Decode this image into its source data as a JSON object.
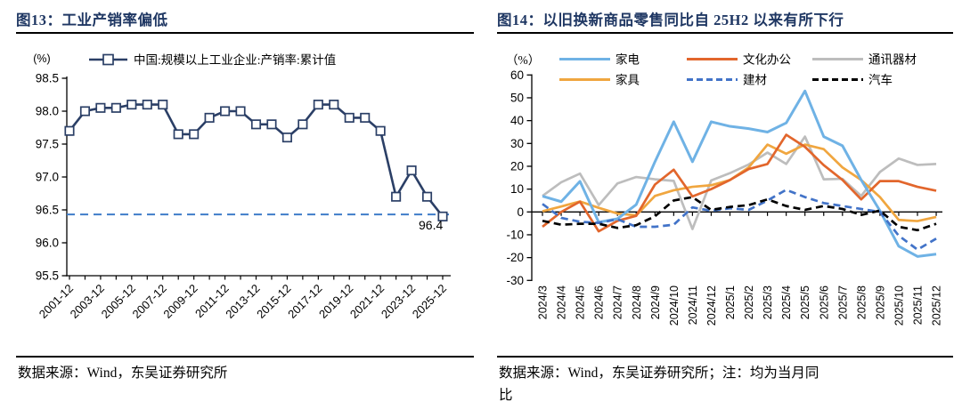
{
  "left_panel": {
    "title": "图13：工业产销率偏低",
    "footer": "数据来源：Wind，东吴证券研究所"
  },
  "right_panel": {
    "title": "图14：以旧换新商品零售同比自 25H2 以来有所下行",
    "footer_line1": "数据来源：Wind，东吴证券研究所；注：均为当月同",
    "footer_line2": "比"
  },
  "colors": {
    "title_navy": "#1F3763",
    "rule_black": "#000000",
    "axis_black": "#000000"
  },
  "chart_data": [
    {
      "type": "line",
      "title": "工业产销率偏低",
      "unit_label": "(%)",
      "legend": [
        "中国:规模以上工业企业:产销率:累计值"
      ],
      "legend_position": "top",
      "grid": false,
      "line_color": "#2B3F66",
      "marker": "hollow-square",
      "ylim": [
        95.5,
        98.5
      ],
      "yticks": [
        98.5,
        98.0,
        97.5,
        97.0,
        96.5,
        96.0,
        95.5
      ],
      "x": [
        "2001-12",
        "2002-12",
        "2003-12",
        "2004-12",
        "2005-12",
        "2006-12",
        "2007-12",
        "2008-12",
        "2009-12",
        "2010-12",
        "2011-12",
        "2012-12",
        "2013-12",
        "2014-12",
        "2015-12",
        "2016-12",
        "2017-12",
        "2018-12",
        "2019-12",
        "2020-12",
        "2021-12",
        "2022-12",
        "2023-12",
        "2024-12",
        "2025-12"
      ],
      "xtick_labels": [
        "2001-12",
        "2003-12",
        "2005-12",
        "2007-12",
        "2009-12",
        "2011-12",
        "2013-12",
        "2015-12",
        "2017-12",
        "2019-12",
        "2021-12",
        "2023-12",
        "2025-12"
      ],
      "values": [
        97.7,
        98.0,
        98.05,
        98.05,
        98.1,
        98.1,
        98.1,
        97.65,
        97.65,
        97.9,
        98.0,
        98.0,
        97.8,
        97.8,
        97.6,
        97.8,
        98.1,
        98.1,
        97.9,
        97.9,
        97.7,
        96.7,
        97.1,
        96.7,
        96.4
      ],
      "ref_line": {
        "value": 96.43,
        "label": "96.4",
        "color": "#3F7CC9",
        "style": "dashed"
      }
    },
    {
      "type": "line",
      "title": "以旧换新商品零售同比自 25H2 以来有所下行",
      "unit_label": "（%）",
      "legend_position": "top",
      "grid": false,
      "ylim": [
        -30,
        60
      ],
      "yticks": [
        60,
        50,
        40,
        30,
        20,
        10,
        0,
        -10,
        -20,
        -30
      ],
      "x": [
        "2024/3",
        "2024/4",
        "2024/5",
        "2024/6",
        "2024/7",
        "2024/8",
        "2024/9",
        "2024/10",
        "2024/11",
        "2024/12",
        "2025/1",
        "2025/2",
        "2025/3",
        "2025/4",
        "2025/5",
        "2025/6",
        "2025/7",
        "2025/8",
        "2025/9",
        "2025/10",
        "2025/11",
        "2025/12"
      ],
      "series": [
        {
          "name": "家电",
          "id": "home-appliance",
          "color": "#6FB2E5",
          "dash": false,
          "values": [
            6.9,
            4.5,
            13.4,
            -4.5,
            -3,
            3.2,
            22,
            39.5,
            22,
            39.5,
            37.5,
            36.5,
            35,
            39,
            53,
            33,
            29,
            14,
            0.5,
            -15,
            -19.5,
            -18.5
          ]
        },
        {
          "name": "文化办公",
          "id": "culture-office",
          "color": "#E2662C",
          "dash": false,
          "values": [
            -6.5,
            0,
            4.5,
            -8.5,
            -3.9,
            -1.7,
            12,
            18.5,
            6.8,
            10,
            14,
            18.8,
            21,
            33.8,
            28.5,
            20.5,
            14,
            5.5,
            13.5,
            13.5,
            11,
            9.3
          ]
        },
        {
          "name": "通讯器材",
          "id": "telecom-equipment",
          "color": "#BDBDBD",
          "dash": false,
          "values": [
            7,
            13,
            16.8,
            3,
            12.5,
            15.3,
            14.3,
            13.6,
            -7.5,
            13.8,
            17,
            20.8,
            26,
            21,
            33,
            14.3,
            14.5,
            7,
            17.5,
            23.4,
            20.6,
            21
          ]
        },
        {
          "name": "家具",
          "id": "furniture",
          "color": "#F0A63F",
          "dash": false,
          "values": [
            0.3,
            2.4,
            4.6,
            1.8,
            -0.7,
            -1.5,
            7,
            9.5,
            11,
            11.7,
            14,
            19.5,
            29.5,
            25.5,
            29.5,
            27.5,
            19.5,
            14,
            6.5,
            -3.5,
            -4,
            -2.2
          ]
        },
        {
          "name": "建材",
          "id": "building-material",
          "color": "#4273C8",
          "dash": true,
          "values": [
            3.5,
            -2.6,
            -4.3,
            -4.8,
            -3.2,
            -6.5,
            -6.5,
            -5.6,
            2,
            0.5,
            1.6,
            0.9,
            5,
            9.7,
            6.5,
            3.9,
            2.6,
            1.3,
            0,
            -10.4,
            -16.5,
            -11.7
          ]
        },
        {
          "name": "汽车",
          "id": "automobile",
          "color": "#000000",
          "dash": true,
          "values": [
            -3.9,
            -5.6,
            -5.2,
            -5.2,
            -7,
            -5.8,
            -1.9,
            5,
            6.5,
            0.9,
            2.2,
            3,
            5.5,
            2.6,
            0.9,
            2.6,
            1.3,
            -1.3,
            0.6,
            -6.5,
            -8,
            -5.2
          ]
        }
      ]
    }
  ]
}
